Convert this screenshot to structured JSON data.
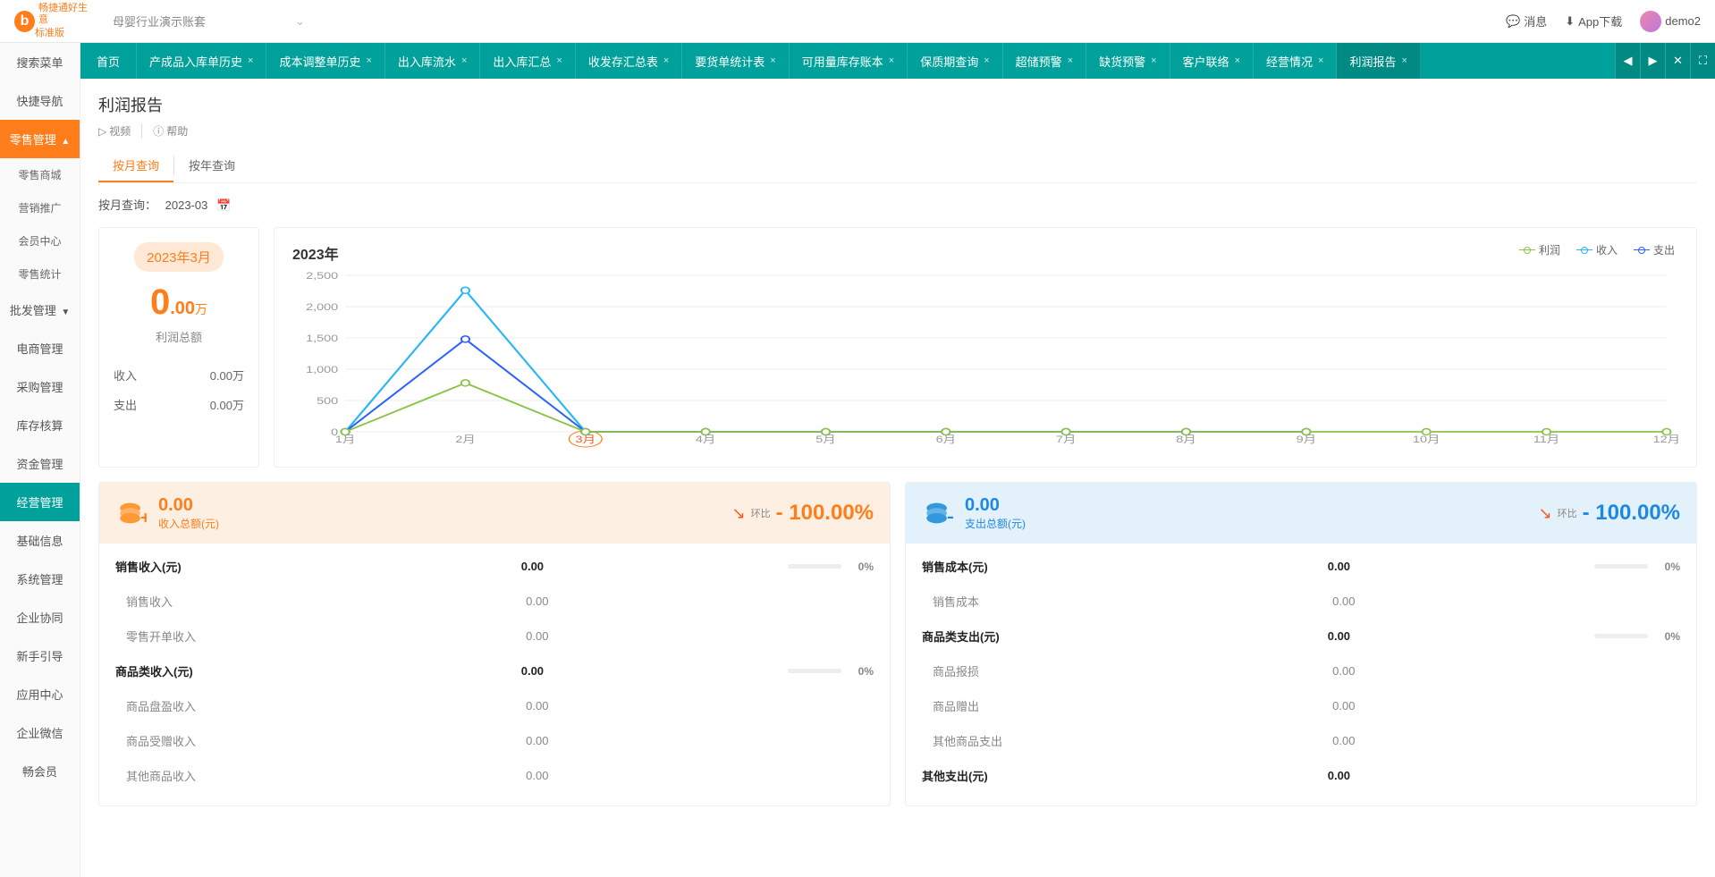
{
  "logo": {
    "brand": "畅捷通好生意",
    "edition": "标准版"
  },
  "account_selector": "母婴行业演示账套",
  "header": {
    "messages": "消息",
    "app_download": "App下载",
    "username": "demo2"
  },
  "sidebar": {
    "search": "搜索菜单",
    "quick": "快捷导航",
    "retail": "零售管理",
    "retail_subs": [
      "零售商城",
      "营销推广",
      "会员中心",
      "零售统计"
    ],
    "wholesale": "批发管理",
    "ecommerce": "电商管理",
    "purchase": "采购管理",
    "inventory": "库存核算",
    "funds": "资金管理",
    "operations": "经营管理",
    "basic": "基础信息",
    "system": "系统管理",
    "collab": "企业协同",
    "guide": "新手引导",
    "appcenter": "应用中心",
    "wechat": "企业微信",
    "member": "畅会员"
  },
  "tabs": {
    "home": "首页",
    "items": [
      "产成品入库单历史",
      "成本调整单历史",
      "出入库流水",
      "出入库汇总",
      "收发存汇总表",
      "要货单统计表",
      "可用量库存账本",
      "保质期查询",
      "超储预警",
      "缺货预警",
      "客户联络",
      "经营情况",
      "利润报告"
    ],
    "active_index": 12
  },
  "page": {
    "title": "利润报告",
    "video": "视频",
    "help": "帮助",
    "sub_tabs": {
      "by_month": "按月查询",
      "by_year": "按年查询"
    },
    "query_label": "按月查询：",
    "query_date": "2023-03"
  },
  "summary": {
    "badge": "2023年3月",
    "big_int": "0",
    "big_dec": ".00",
    "big_unit": "万",
    "label": "利润总额",
    "income_label": "收入",
    "income_value": "0.00万",
    "expense_label": "支出",
    "expense_value": "0.00万"
  },
  "chart": {
    "title": "2023年",
    "legend": {
      "profit": "利润",
      "income": "收入",
      "expense": "支出"
    },
    "y_ticks": [
      "0",
      "500",
      "1,000",
      "1,500",
      "2,000",
      "2,500"
    ],
    "y_max": 2500,
    "x_labels": [
      "1月",
      "2月",
      "3月",
      "4月",
      "5月",
      "6月",
      "7月",
      "8月",
      "9月",
      "10月",
      "11月",
      "12月"
    ],
    "x_highlight_index": 2,
    "series": {
      "profit": {
        "color": "#8bc34a",
        "values": [
          0,
          780,
          0,
          0,
          0,
          0,
          0,
          0,
          0,
          0,
          0,
          0
        ]
      },
      "income": {
        "color": "#29b6f6",
        "values": [
          0,
          2260,
          0,
          0,
          0,
          0,
          0,
          0,
          0,
          null,
          null,
          null
        ]
      },
      "expense": {
        "color": "#2962ff",
        "values": [
          0,
          1480,
          0,
          0,
          0,
          0,
          0,
          0,
          0,
          null,
          null,
          null
        ]
      }
    },
    "background_color": "#ffffff",
    "grid_color": "#eeeeee",
    "axis_text_color": "#999999"
  },
  "income_card": {
    "amount": "0.00",
    "subtitle": "收入总额(元)",
    "hb": "环比",
    "pct": "- 100.00%",
    "rows": [
      {
        "name": "销售收入(元)",
        "val": "0.00",
        "pct": "0%",
        "bold": true,
        "show_bar": true
      },
      {
        "name": "销售收入",
        "val": "0.00",
        "bold": false,
        "show_bar": false
      },
      {
        "name": "零售开单收入",
        "val": "0.00",
        "bold": false,
        "show_bar": false
      },
      {
        "name": "商品类收入(元)",
        "val": "0.00",
        "pct": "0%",
        "bold": true,
        "show_bar": true
      },
      {
        "name": "商品盘盈收入",
        "val": "0.00",
        "bold": false,
        "show_bar": false
      },
      {
        "name": "商品受赠收入",
        "val": "0.00",
        "bold": false,
        "show_bar": false
      },
      {
        "name": "其他商品收入",
        "val": "0.00",
        "bold": false,
        "show_bar": false
      }
    ]
  },
  "expense_card": {
    "amount": "0.00",
    "subtitle": "支出总额(元)",
    "hb": "环比",
    "pct": "- 100.00%",
    "rows": [
      {
        "name": "销售成本(元)",
        "val": "0.00",
        "pct": "0%",
        "bold": true,
        "show_bar": true
      },
      {
        "name": "销售成本",
        "val": "0.00",
        "bold": false,
        "show_bar": false
      },
      {
        "name": "商品类支出(元)",
        "val": "0.00",
        "pct": "0%",
        "bold": true,
        "show_bar": true
      },
      {
        "name": "商品报损",
        "val": "0.00",
        "bold": false,
        "show_bar": false
      },
      {
        "name": "商品赠出",
        "val": "0.00",
        "bold": false,
        "show_bar": false
      },
      {
        "name": "其他商品支出",
        "val": "0.00",
        "bold": false,
        "show_bar": false
      },
      {
        "name": "其他支出(元)",
        "val": "0.00",
        "bold": true,
        "show_bar": false
      }
    ]
  }
}
